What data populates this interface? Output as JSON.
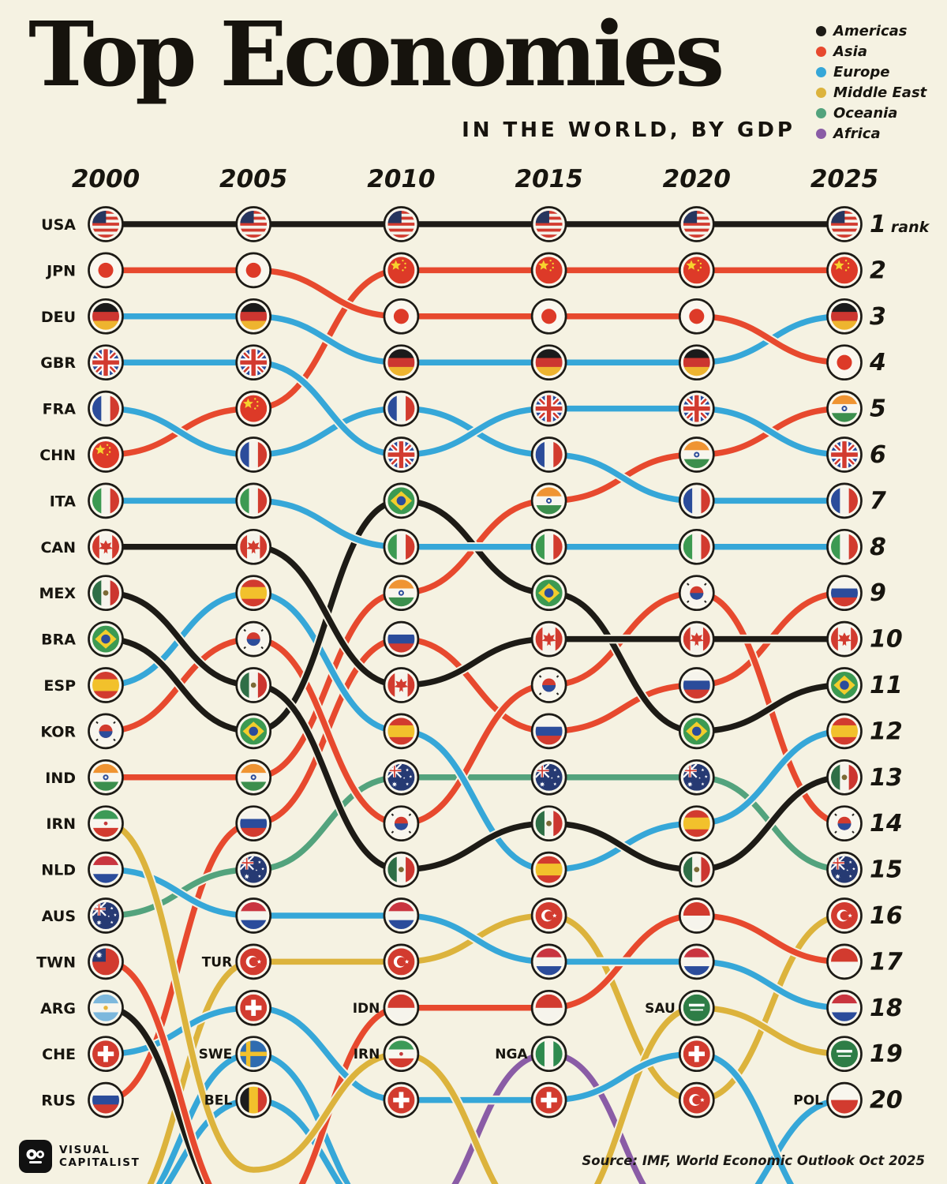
{
  "title": "Top Economies",
  "subtitle": "IN THE WORLD, BY GDP",
  "legend": [
    {
      "label": "Americas",
      "color": "#1d1b16"
    },
    {
      "label": "Asia",
      "color": "#e7492e"
    },
    {
      "label": "Europe",
      "color": "#36a7d8"
    },
    {
      "label": "Middle East",
      "color": "#dcb33c"
    },
    {
      "label": "Oceania",
      "color": "#53a37d"
    },
    {
      "label": "Africa",
      "color": "#8a5ca6"
    }
  ],
  "footer": {
    "brand_line1": "VISUAL",
    "brand_line2": "CAPITALIST",
    "source": "Source: IMF, World Economic Outlook Oct 2025"
  },
  "chart_data": {
    "type": "bump",
    "years": [
      "2000",
      "2005",
      "2010",
      "2015",
      "2020",
      "2025"
    ],
    "rank_range": [
      1,
      20
    ],
    "rank_suffix": "rank",
    "continent_colors": {
      "Americas": "#1d1b16",
      "Asia": "#e7492e",
      "Europe": "#36a7d8",
      "Middle East": "#dcb33c",
      "Oceania": "#53a37d",
      "Africa": "#8a5ca6"
    },
    "countries": [
      {
        "code": "USA",
        "continent": "Americas",
        "ranks": [
          1,
          1,
          1,
          1,
          1,
          1
        ]
      },
      {
        "code": "JPN",
        "continent": "Asia",
        "ranks": [
          2,
          2,
          3,
          3,
          3,
          4
        ]
      },
      {
        "code": "DEU",
        "continent": "Europe",
        "ranks": [
          3,
          3,
          4,
          4,
          4,
          3
        ]
      },
      {
        "code": "GBR",
        "continent": "Europe",
        "ranks": [
          4,
          4,
          6,
          5,
          5,
          6
        ]
      },
      {
        "code": "FRA",
        "continent": "Europe",
        "ranks": [
          5,
          6,
          5,
          6,
          7,
          7
        ]
      },
      {
        "code": "CHN",
        "continent": "Asia",
        "ranks": [
          6,
          5,
          2,
          2,
          2,
          2
        ]
      },
      {
        "code": "ITA",
        "continent": "Europe",
        "ranks": [
          7,
          7,
          8,
          8,
          8,
          8
        ]
      },
      {
        "code": "CAN",
        "continent": "Americas",
        "ranks": [
          8,
          8,
          11,
          10,
          10,
          10
        ]
      },
      {
        "code": "MEX",
        "continent": "Americas",
        "ranks": [
          9,
          11,
          15,
          14,
          15,
          13
        ]
      },
      {
        "code": "BRA",
        "continent": "Americas",
        "ranks": [
          10,
          12,
          7,
          9,
          12,
          11
        ]
      },
      {
        "code": "ESP",
        "continent": "Europe",
        "ranks": [
          11,
          9,
          12,
          15,
          14,
          12
        ]
      },
      {
        "code": "KOR",
        "continent": "Asia",
        "ranks": [
          12,
          10,
          14,
          11,
          9,
          14
        ]
      },
      {
        "code": "IND",
        "continent": "Asia",
        "ranks": [
          13,
          13,
          9,
          7,
          6,
          5
        ]
      },
      {
        "code": "IRN",
        "continent": "Middle East",
        "ranks": [
          14,
          null,
          19,
          null,
          null,
          null
        ]
      },
      {
        "code": "NLD",
        "continent": "Europe",
        "ranks": [
          15,
          16,
          16,
          17,
          17,
          18
        ]
      },
      {
        "code": "AUS",
        "continent": "Oceania",
        "ranks": [
          16,
          15,
          13,
          13,
          13,
          15
        ]
      },
      {
        "code": "TWN",
        "continent": "Asia",
        "ranks": [
          17,
          null,
          null,
          null,
          null,
          null
        ]
      },
      {
        "code": "ARG",
        "continent": "Americas",
        "ranks": [
          18,
          null,
          null,
          null,
          null,
          null
        ]
      },
      {
        "code": "CHE",
        "continent": "Europe",
        "ranks": [
          19,
          18,
          20,
          20,
          19,
          null
        ]
      },
      {
        "code": "RUS",
        "continent": "Asia",
        "ranks": [
          20,
          14,
          10,
          12,
          11,
          9
        ]
      },
      {
        "code": "TUR",
        "continent": "Middle East",
        "ranks": [
          null,
          17,
          17,
          16,
          20,
          16
        ]
      },
      {
        "code": "SWE",
        "continent": "Europe",
        "ranks": [
          null,
          19,
          null,
          null,
          null,
          null
        ]
      },
      {
        "code": "BEL",
        "continent": "Europe",
        "ranks": [
          null,
          20,
          null,
          null,
          null,
          null
        ]
      },
      {
        "code": "IDN",
        "continent": "Asia",
        "ranks": [
          null,
          null,
          18,
          18,
          16,
          17
        ]
      },
      {
        "code": "NGA",
        "continent": "Africa",
        "ranks": [
          null,
          null,
          null,
          19,
          null,
          null
        ]
      },
      {
        "code": "SAU",
        "continent": "Middle East",
        "ranks": [
          null,
          null,
          null,
          null,
          18,
          19
        ]
      },
      {
        "code": "POL",
        "continent": "Europe",
        "ranks": [
          null,
          null,
          null,
          null,
          null,
          20
        ]
      }
    ],
    "inline_labels": [
      {
        "code": "TUR",
        "year": "2005",
        "rank": 17
      },
      {
        "code": "SWE",
        "year": "2005",
        "rank": 19
      },
      {
        "code": "BEL",
        "year": "2005",
        "rank": 20
      },
      {
        "code": "IDN",
        "year": "2010",
        "rank": 18
      },
      {
        "code": "IRN",
        "year": "2010",
        "rank": 19
      },
      {
        "code": "NGA",
        "year": "2015",
        "rank": 19
      },
      {
        "code": "SAU",
        "year": "2020",
        "rank": 18
      },
      {
        "code": "POL",
        "year": "2025",
        "rank": 20
      }
    ]
  }
}
